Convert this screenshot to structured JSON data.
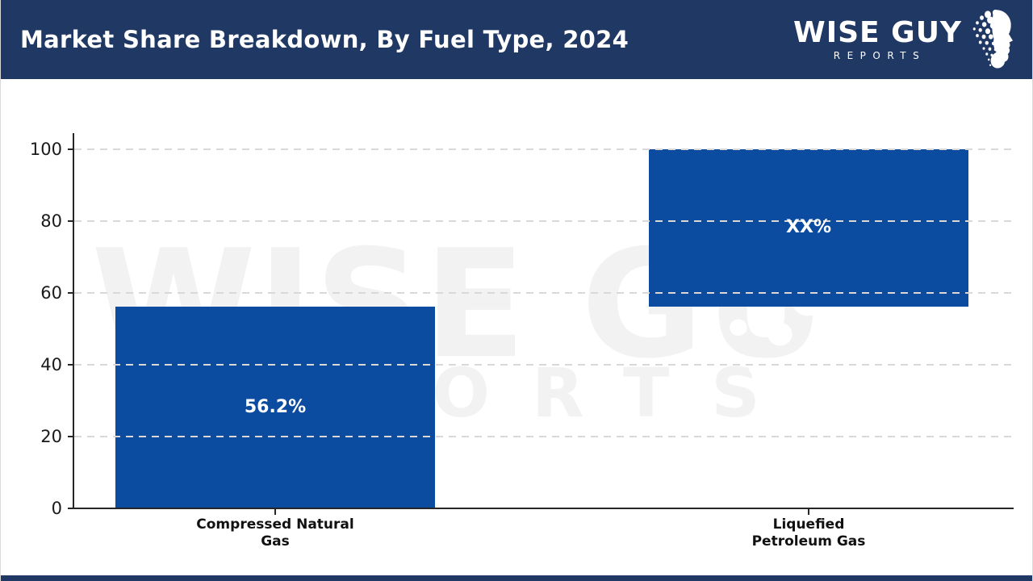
{
  "header": {
    "title": "Market Share Breakdown, By Fuel Type, 2024",
    "logo": {
      "name": "WISE GUY",
      "sub": "REPORTS"
    }
  },
  "watermark": {
    "name": "WISE GUY",
    "sub": "REPORTS"
  },
  "chart_data": {
    "type": "bar",
    "title": "Market Share Breakdown, By Fuel Type, 2024",
    "xlabel": "",
    "ylabel": "",
    "ylim": [
      0,
      100
    ],
    "y_ticks": [
      0,
      20,
      40,
      60,
      80,
      100
    ],
    "grid": "horizontal-dashed",
    "legend": "none",
    "categories": [
      "Compressed Natural Gas",
      "Liquefied Petroleum Gas"
    ],
    "bars": [
      {
        "category_lines": [
          "Compressed Natural",
          "Gas"
        ],
        "start": 0,
        "end": 56.2,
        "label": "56.2%"
      },
      {
        "category_lines": [
          "Liquefied",
          "Petroleum Gas"
        ],
        "start": 56.2,
        "end": 100,
        "label": "XX%"
      }
    ]
  },
  "colors": {
    "header_bg": "#203864",
    "footer_bg": "#203864",
    "bar_fill": "#0b4ba0",
    "gridline": "#d9d9d9",
    "axis": "#262626",
    "tick_text": "#1a1a1a",
    "watermark": "#f2f2f2"
  }
}
